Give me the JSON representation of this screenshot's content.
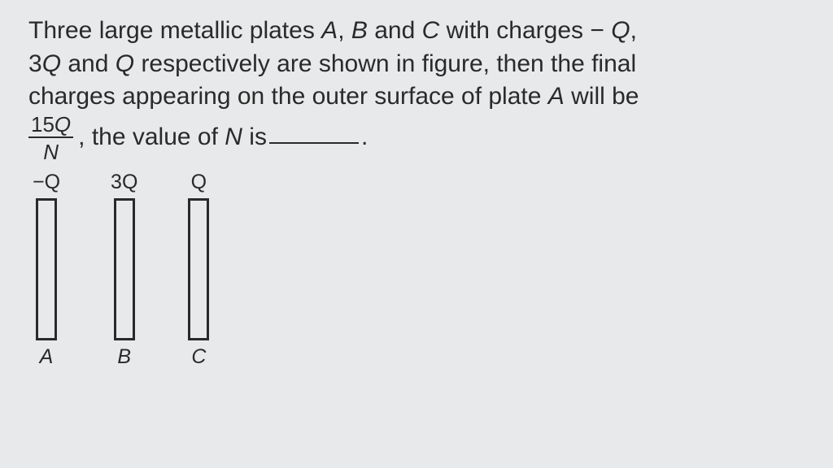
{
  "question": {
    "line1_part1": "Three large metallic plates ",
    "line1_A": "A",
    "line1_sep1": ", ",
    "line1_B": "B",
    "line1_part2": " and ",
    "line1_C": "C",
    "line1_part3": " with charges − ",
    "line1_Q": "Q",
    "line1_end": ",",
    "line2_part1": "3",
    "line2_Q1": "Q",
    "line2_part2": " and ",
    "line2_Q2": "Q",
    "line2_part3": " respectively are shown in figure, then the final",
    "line3_part1": "charges appearing on the outer surface of plate ",
    "line3_A": "A",
    "line3_part2": " will be",
    "frac_num_coeff": "15",
    "frac_num_var": "Q",
    "frac_den": "N",
    "line4_part1": ", the value of ",
    "line4_N": "N",
    "line4_part2": " is",
    "line4_end": "."
  },
  "diagram": {
    "plates": [
      {
        "top": "−Q",
        "bottom": "A"
      },
      {
        "top": "3Q",
        "bottom": "B"
      },
      {
        "top": "Q",
        "bottom": "C"
      }
    ],
    "plate_width": 26,
    "plate_height": 175,
    "plate_border_width": 3,
    "plate_border_color": "#2a2a2a",
    "gap": 62
  },
  "colors": {
    "background": "#e8e9eb",
    "text": "#2a2a2a"
  },
  "typography": {
    "body_fontsize": 30,
    "label_fontsize": 25
  }
}
